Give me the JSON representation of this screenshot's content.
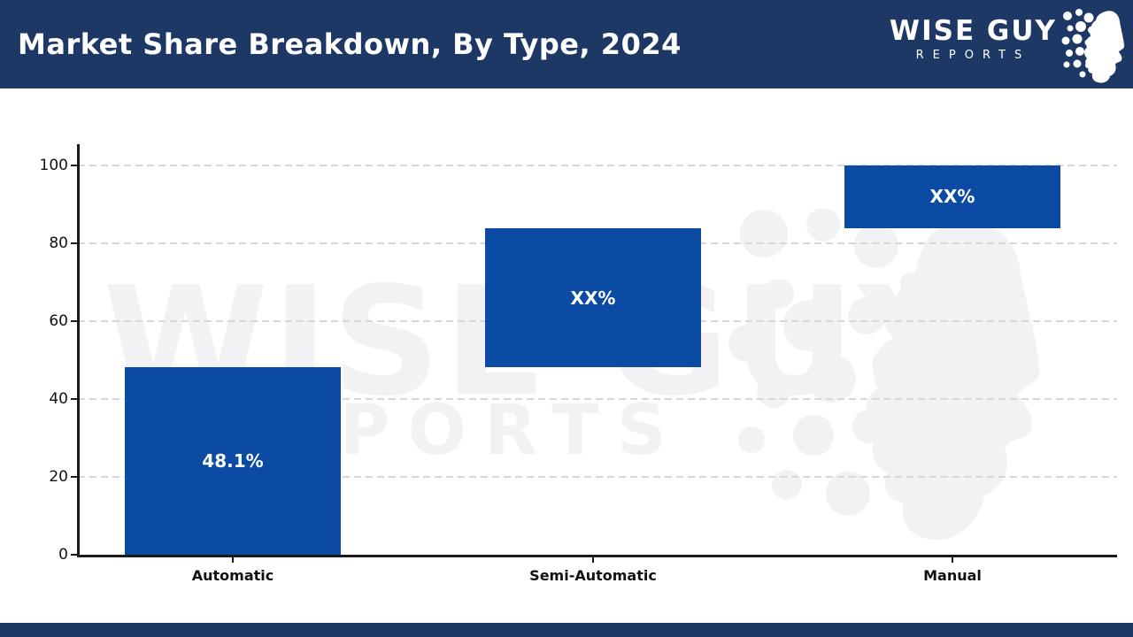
{
  "header": {
    "title": "Market Share Breakdown, By Type, 2024",
    "background_color": "#1e3866",
    "logo": {
      "line1": "WISE GUY",
      "line2": "REPORTS"
    }
  },
  "footer": {
    "background_color": "#1e3866"
  },
  "watermark": {
    "line1": "WISE GUY",
    "line2": "REPORTS"
  },
  "chart_data": {
    "type": "bar",
    "subtype": "waterfall",
    "title": "Market Share Breakdown, By Type, 2024",
    "xlabel": "",
    "ylabel": "",
    "ylim": [
      0,
      100
    ],
    "yticks": [
      0,
      20,
      40,
      60,
      80,
      100
    ],
    "grid": "horizontal-dashed",
    "legend": "none",
    "categories": [
      "Automatic",
      "Semi-Automatic",
      "Manual"
    ],
    "series": [
      {
        "name": "Market Share",
        "segments": [
          {
            "category": "Automatic",
            "start": 0,
            "end": 48.1,
            "label": "48.1%"
          },
          {
            "category": "Semi-Automatic",
            "start": 48.1,
            "end": 83.9,
            "label": "XX%"
          },
          {
            "category": "Manual",
            "start": 83.9,
            "end": 100,
            "label": "XX%"
          }
        ]
      }
    ],
    "bar_color": "#0b4ba3",
    "bar_label_color": "#ffffff",
    "axis_color": "#1a1a1a",
    "gridline_color": "#d7d7d7"
  }
}
